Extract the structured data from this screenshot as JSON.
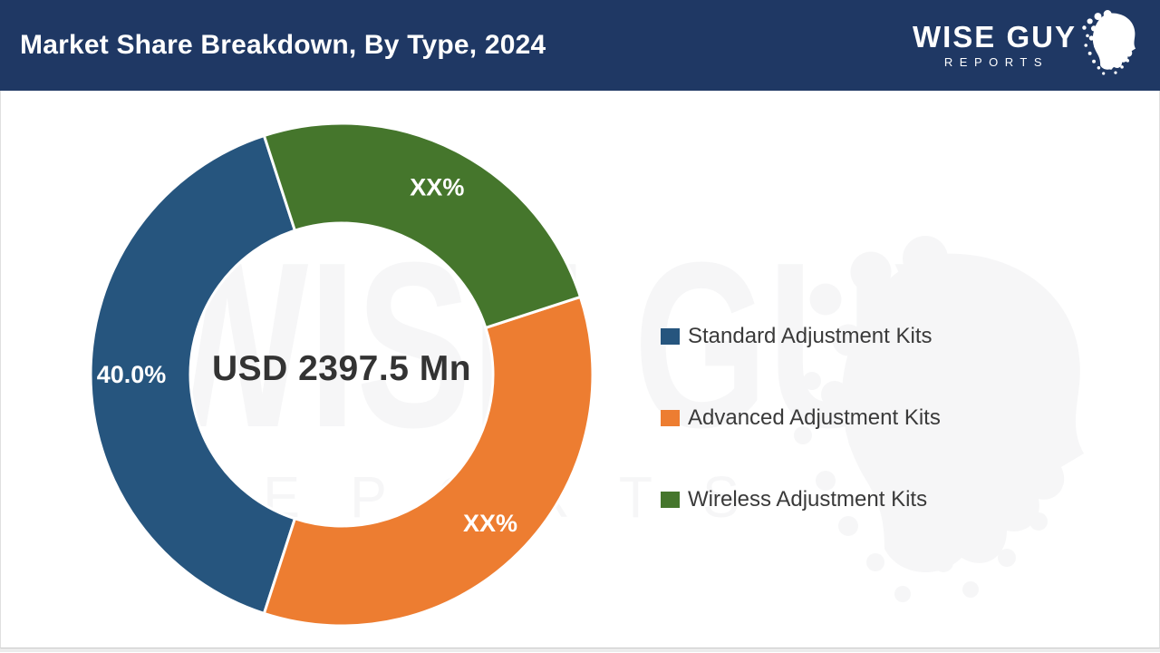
{
  "header": {
    "title": "Market Share Breakdown, By Type, 2024",
    "brand": {
      "name": "WISE GUY",
      "subtitle": "REPORTS"
    }
  },
  "chart_data": {
    "type": "pie",
    "variant": "donut",
    "title": "Market Share Breakdown, By Type, 2024",
    "center_label": "USD 2397.5 Mn",
    "start_angle_deg_from_top": -18,
    "direction": "counterclockwise",
    "legend_position": "right",
    "segments": [
      {
        "name": "Standard Adjustment Kits",
        "value": 40,
        "label": "40.0%",
        "color": "#26557e"
      },
      {
        "name": "Advanced Adjustment Kits",
        "value": 35,
        "label": "XX%",
        "color": "#ed7d31"
      },
      {
        "name": "Wireless Adjustment Kits",
        "value": 25,
        "label": "XX%",
        "color": "#45762c"
      }
    ]
  },
  "watermark": {
    "line1": "WISE GUY",
    "line2": "REPORTS"
  },
  "colors": {
    "header_bg": "#1f3864",
    "center_text": "#333333",
    "slice_label_text": "#ffffff",
    "legend_text": "#3a3a3a"
  }
}
